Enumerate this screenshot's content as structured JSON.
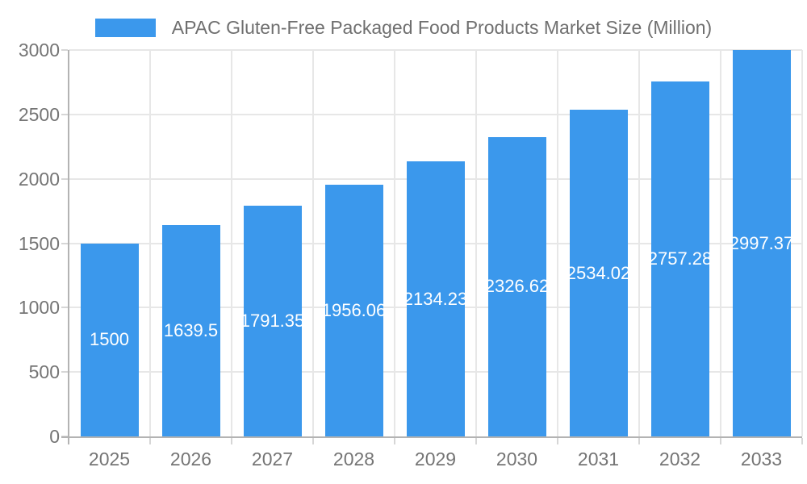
{
  "chart_data": {
    "type": "bar",
    "title": "APAC Gluten-Free Packaged Food Products Market Size (Million)",
    "categories": [
      "2025",
      "2026",
      "2027",
      "2028",
      "2029",
      "2030",
      "2031",
      "2032",
      "2033"
    ],
    "values": [
      1500,
      1639.5,
      1791.35,
      1956.06,
      2134.23,
      2326.62,
      2534.02,
      2757.28,
      2997.37
    ],
    "bar_labels": [
      "1500",
      "1639.5",
      "1791.35",
      "1956.06",
      "2134.23",
      "2326.62",
      "2534.02",
      "2757.28",
      "2997.37"
    ],
    "xlabel": "",
    "ylabel": "",
    "ylim": [
      0,
      3000
    ],
    "yticks": [
      0,
      500,
      1000,
      1500,
      2000,
      2500,
      3000
    ],
    "grid": true,
    "legend_position": "top-center",
    "bar_label_position": "inside-center",
    "colors": {
      "bar": "#3b98ec",
      "bar_label": "#ffffff",
      "grid": "#e7e7e7",
      "axis": "#b3b3b3",
      "tick_label": "#757575",
      "title": "#6f6f6f",
      "background": "#ffffff"
    }
  }
}
